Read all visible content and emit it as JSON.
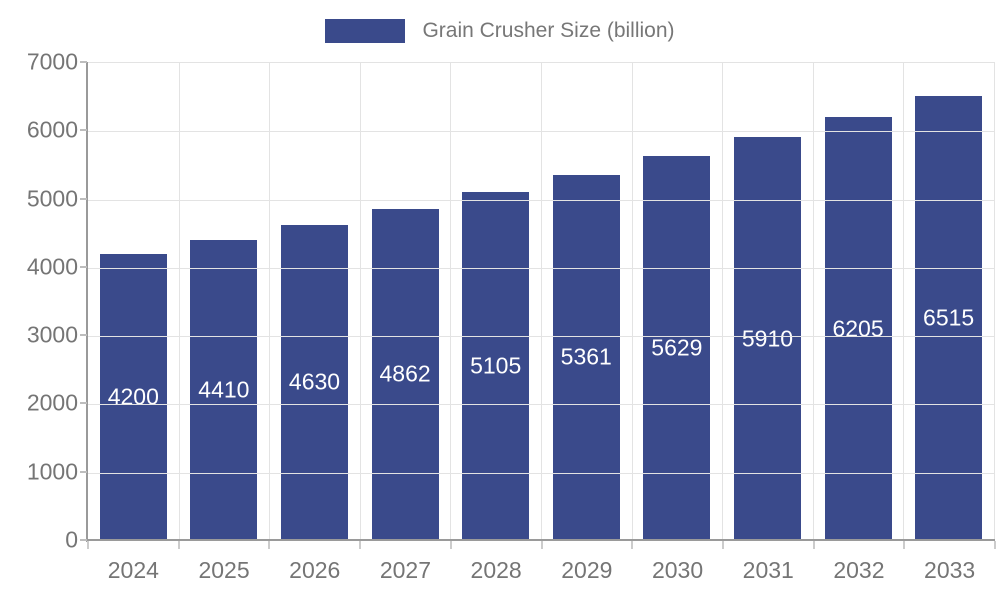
{
  "legend": {
    "label": "Grain Crusher Size (billion)",
    "swatch_color": "#3a4a8b"
  },
  "chart_data": {
    "type": "bar",
    "title": "",
    "xlabel": "",
    "ylabel": "",
    "categories": [
      "2024",
      "2025",
      "2026",
      "2027",
      "2028",
      "2029",
      "2030",
      "2031",
      "2032",
      "2033"
    ],
    "series": [
      {
        "name": "Grain Crusher Size (billion)",
        "values": [
          4200,
          4410,
          4630,
          4862,
          5105,
          5361,
          5629,
          5910,
          6205,
          6515
        ]
      }
    ],
    "ylim": [
      0,
      7000
    ],
    "y_ticks": [
      0,
      1000,
      2000,
      3000,
      4000,
      5000,
      6000,
      7000
    ],
    "grid": true,
    "legend_position": "top-center",
    "bar_labels_inside": true
  },
  "colors": {
    "bar": "#3a4a8b",
    "bar_label_text": "#ffffff",
    "gridline": "#e3e3e3",
    "axis_line": "#9a9a9a",
    "tick_text": "#757575",
    "legend_text": "#777777",
    "background": "#ffffff"
  }
}
